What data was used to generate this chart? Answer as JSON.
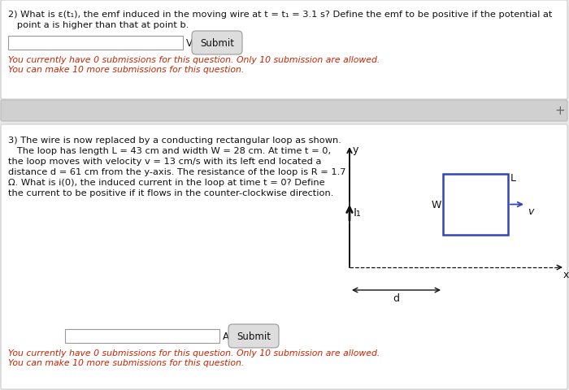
{
  "bg_color": "#e8e8e8",
  "white_color": "#ffffff",
  "red_color": "#cc2200",
  "blue_color": "#3344bb",
  "black_color": "#111111",
  "gray_color": "#c0c0c0",
  "gray_box_color": "#d0d0d0",
  "dark_gray": "#666666",
  "button_color": "#dddddd",
  "border_color": "#aaaaaa",
  "q2_line1": "2) What is ε(t₁), the emf induced in the moving wire at t = t₁ = 3.1 s? Define the emf to be positive if the potential at",
  "q2_line2": "   point a is higher than that at point b.",
  "q2_submit": "Submit",
  "q2_input_suffix": "V",
  "q2_red1": "You currently have 0 submissions for this question. Only 10 submission are allowed.",
  "q2_red2": "You can make 10 more submissions for this question.",
  "q3_line1": "3) The wire is now replaced by a conducting rectangular loop as shown.",
  "q3_line2": "   The loop has length L = 43 cm and width W = 28 cm. At time t = 0,",
  "q3_line3": "the loop moves with velocity v = 13 cm/s with its left end located a",
  "q3_line4": "distance d = 61 cm from the y-axis. The resistance of the loop is R = 1.7",
  "q3_line5": "Ω. What is i(0), the induced current in the loop at time t = 0? Define",
  "q3_line6": "the current to be positive if it flows in the counter-clockwise direction.",
  "q3_submit": "Submit",
  "q3_input_suffix": "A",
  "q3_red1": "You currently have 0 submissions for this question. Only 10 submission are allowed.",
  "q3_red2": "You can make 10 more submissions for this question.",
  "I1_label": "I₁",
  "y_label": "y",
  "x_label": "x",
  "L_label": "L",
  "W_label": "W",
  "v_label": "v",
  "d_label": "d",
  "plus_label": "+"
}
